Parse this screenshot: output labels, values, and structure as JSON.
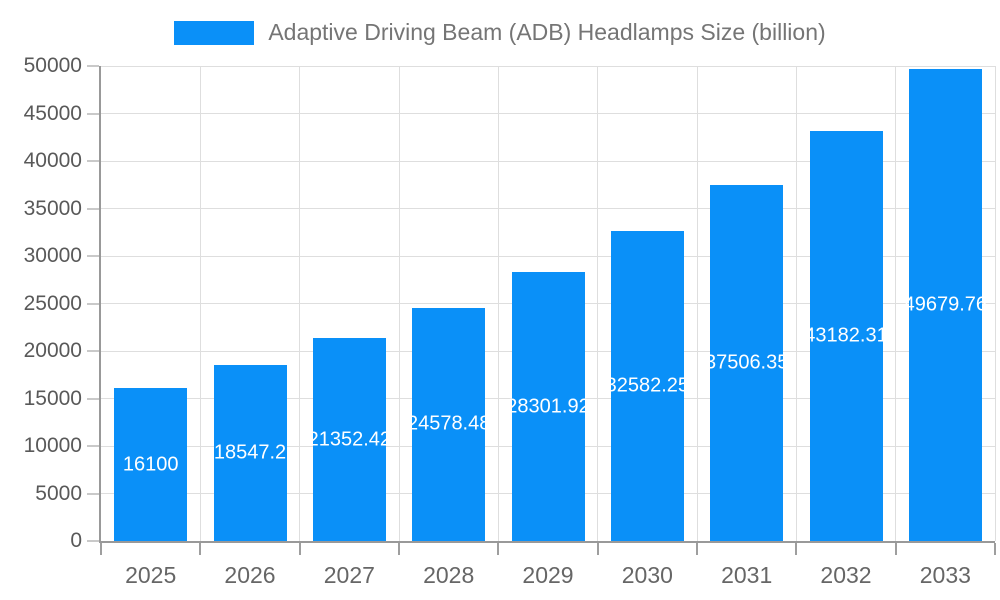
{
  "legend": {
    "label": "Adaptive Driving Beam (ADB) Headlamps Size (billion)",
    "swatch_color": "#0a90f8"
  },
  "chart_data": {
    "type": "bar",
    "title": "Adaptive Driving Beam (ADB) Headlamps Size (billion)",
    "categories": [
      "2025",
      "2026",
      "2027",
      "2028",
      "2029",
      "2030",
      "2031",
      "2032",
      "2033"
    ],
    "series": [
      {
        "name": "Adaptive Driving Beam (ADB) Headlamps Size (billion)",
        "values": [
          16100,
          18547.2,
          21352.42,
          24578.48,
          28301.92,
          32582.25,
          37506.35,
          43182.31,
          49679.76
        ]
      }
    ],
    "bar_labels": [
      "16100",
      "18547.2",
      "21352.42",
      "24578.48",
      "28301.92",
      "32582.25",
      "37506.35",
      "43182.31",
      "49679.76"
    ],
    "yticks": [
      "0",
      "5000",
      "10000",
      "15000",
      "20000",
      "25000",
      "30000",
      "35000",
      "40000",
      "45000",
      "50000"
    ],
    "ylim": [
      0,
      50000
    ],
    "xlabel": "",
    "ylabel": "",
    "grid": true,
    "legend_position": "top",
    "bar_color": "#0a90f8",
    "bar_label_color": "#ffffff"
  }
}
